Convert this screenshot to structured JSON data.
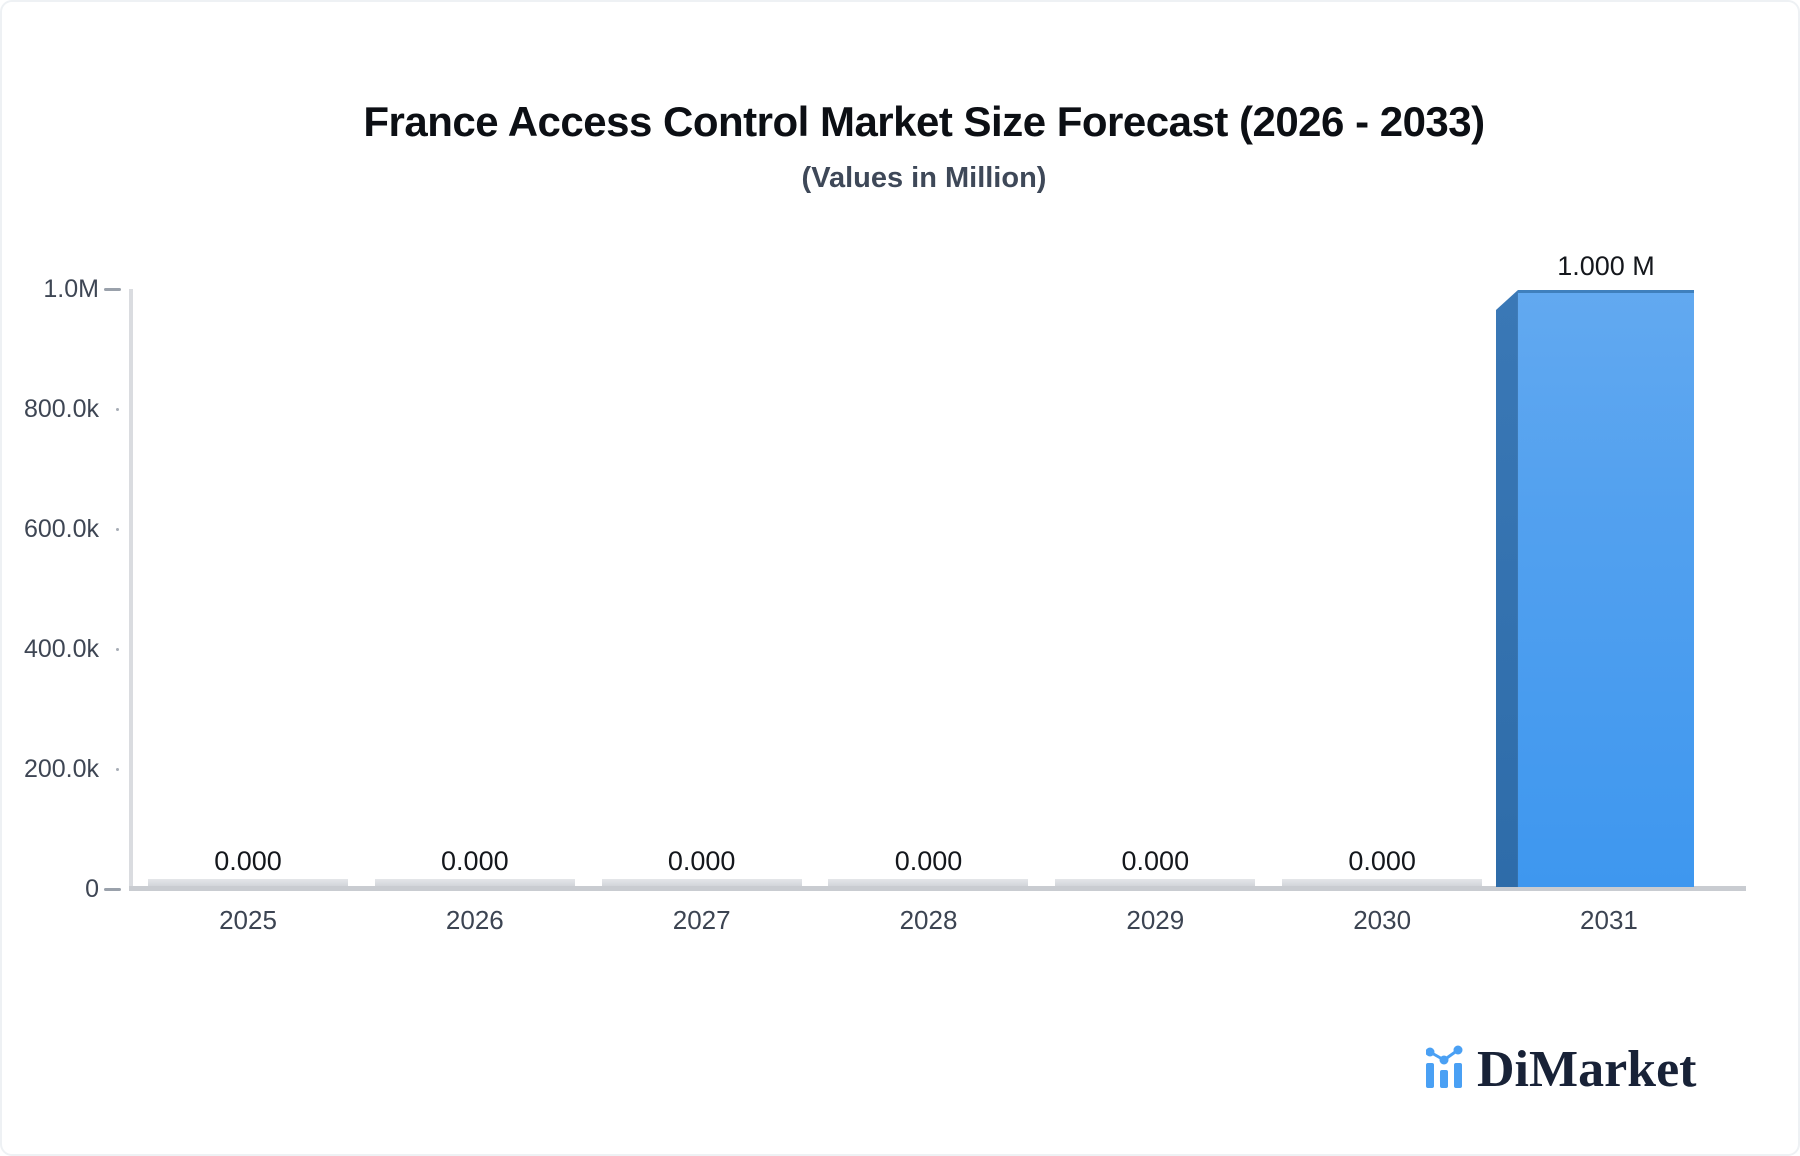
{
  "header": {
    "title": "France Access Control Market Size Forecast (2026 - 2033)",
    "subtitle": "(Values in Million)"
  },
  "chart_data": {
    "type": "bar",
    "title": "France Access Control Market Size Forecast (2026 - 2033)",
    "subtitle": "(Values in Million)",
    "categories": [
      "2025",
      "2026",
      "2027",
      "2028",
      "2029",
      "2030",
      "2031"
    ],
    "values": [
      0,
      0,
      0,
      0,
      0,
      0,
      1000000
    ],
    "value_labels": [
      "0.000",
      "0.000",
      "0.000",
      "0.000",
      "0.000",
      "0.000",
      "1.000 M"
    ],
    "xlabel": "",
    "ylabel": "",
    "ylim": [
      0,
      1000000
    ],
    "y_ticks": [
      {
        "value": 1000000,
        "label": "1.0M",
        "style": "dash"
      },
      {
        "value": 800000,
        "label": "800.0k",
        "style": "dot"
      },
      {
        "value": 600000,
        "label": "600.0k",
        "style": "dot"
      },
      {
        "value": 400000,
        "label": "400.0k",
        "style": "dot"
      },
      {
        "value": 200000,
        "label": "200.0k",
        "style": "dot"
      },
      {
        "value": 0,
        "label": "0",
        "style": "dash"
      }
    ],
    "grid": false,
    "legend": false,
    "bar_style": "3d",
    "colors": {
      "bar_face_top": "#62A9F0",
      "bar_face_bottom": "#3E97EF",
      "bar_side": "#3273B1",
      "zero_bar": "#D9DBDF",
      "axis_line": "#C9CCD1",
      "tick": "#9AA1AB",
      "label_text": "#3C4452",
      "value_text": "#14171C"
    }
  },
  "logo": {
    "name": "DiMarket",
    "icon": "bar-line-chart-icon",
    "icon_color": "#4AA0F4",
    "text_color": "#182237"
  }
}
